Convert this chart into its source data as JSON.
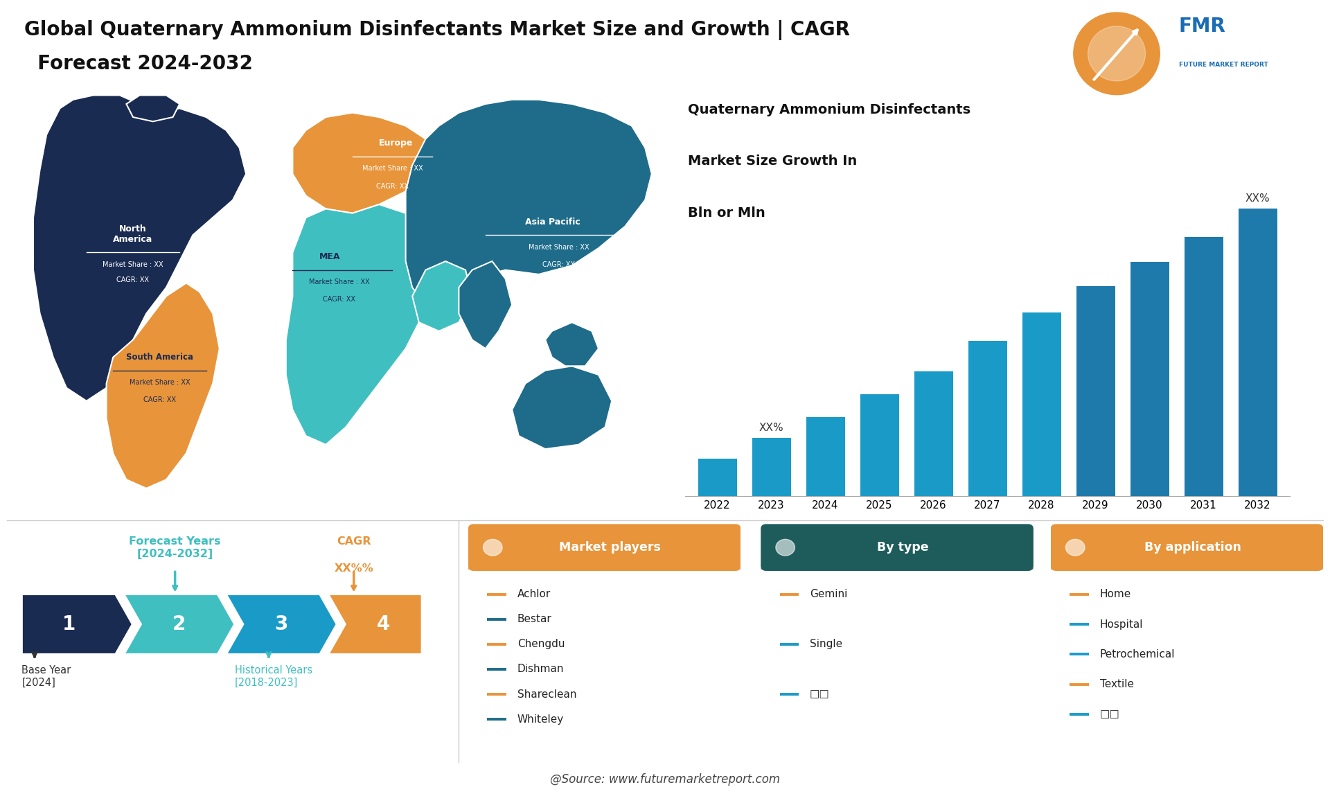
{
  "title_line1": "Global Quaternary Ammonium Disinfectants Market Size and Growth | CAGR",
  "title_line2": "  Forecast 2024-2032",
  "title_fontsize": 20,
  "bg_color": "#ffffff",
  "bar_years": [
    "2022",
    "2023",
    "2024",
    "2025",
    "2026",
    "2027",
    "2028",
    "2029",
    "2030",
    "2031",
    "2032"
  ],
  "bar_heights": [
    1.0,
    1.55,
    2.1,
    2.7,
    3.3,
    4.1,
    4.85,
    5.55,
    6.2,
    6.85,
    7.6
  ],
  "bar_color_main": "#1a9bc7",
  "bar_color_alt": "#1e7aaa",
  "chart_title_line1": "Quaternary Ammonium Disinfectants",
  "chart_title_line2": "Market Size Growth In",
  "chart_title_line3": "Bln or Mln",
  "xx_label_2023": "XX%",
  "xx_label_2032": "XX%",
  "timeline_segments": [
    {
      "label": "1",
      "color": "#1a2b52"
    },
    {
      "label": "2",
      "color": "#40bfc1"
    },
    {
      "label": "3",
      "color": "#1a9bc7"
    },
    {
      "label": "4",
      "color": "#e8943a"
    }
  ],
  "base_year_label": "Base Year\n[2024]",
  "forecast_years_label": "Forecast Years\n[2024-2032]",
  "historical_years_label": "Historical Years\n[2018-2023]",
  "cagr_label_line1": "CAGR",
  "cagr_label_line2": "XX%%",
  "market_players_title": "Market players",
  "market_players_bg": "#e8943a",
  "market_players": [
    "Achlor",
    "Bestar",
    "Chengdu",
    "Dishman",
    "Shareclean",
    "Whiteley"
  ],
  "mp_bullet_colors": [
    "#e8943a",
    "#1e6b8a",
    "#e8943a",
    "#1e6b8a",
    "#e8943a",
    "#1e6b8a"
  ],
  "by_type_title": "By type",
  "by_type_bg": "#1e5c5c",
  "by_type": [
    "Gemini",
    "Single",
    "□□"
  ],
  "bt_bullet_colors": [
    "#e8943a",
    "#1a9bc7",
    "#1a9bc7"
  ],
  "by_application_title": "By application",
  "by_application_bg": "#e8943a",
  "by_application": [
    "Home",
    "Hospital",
    "Petrochemical",
    "Textile",
    "□□"
  ],
  "ba_bullet_colors": [
    "#e8943a",
    "#1a9bc7",
    "#1a9bc7",
    "#e8943a",
    "#1a9bc7"
  ],
  "source_text": "@Source: www.futuremarketreport.com",
  "teal_color": "#40bfc1",
  "orange_color": "#e8943a",
  "dark_blue": "#1a2b52",
  "mid_blue": "#1a9bc7",
  "dark_teal": "#1e6b8a",
  "white": "#ffffff"
}
